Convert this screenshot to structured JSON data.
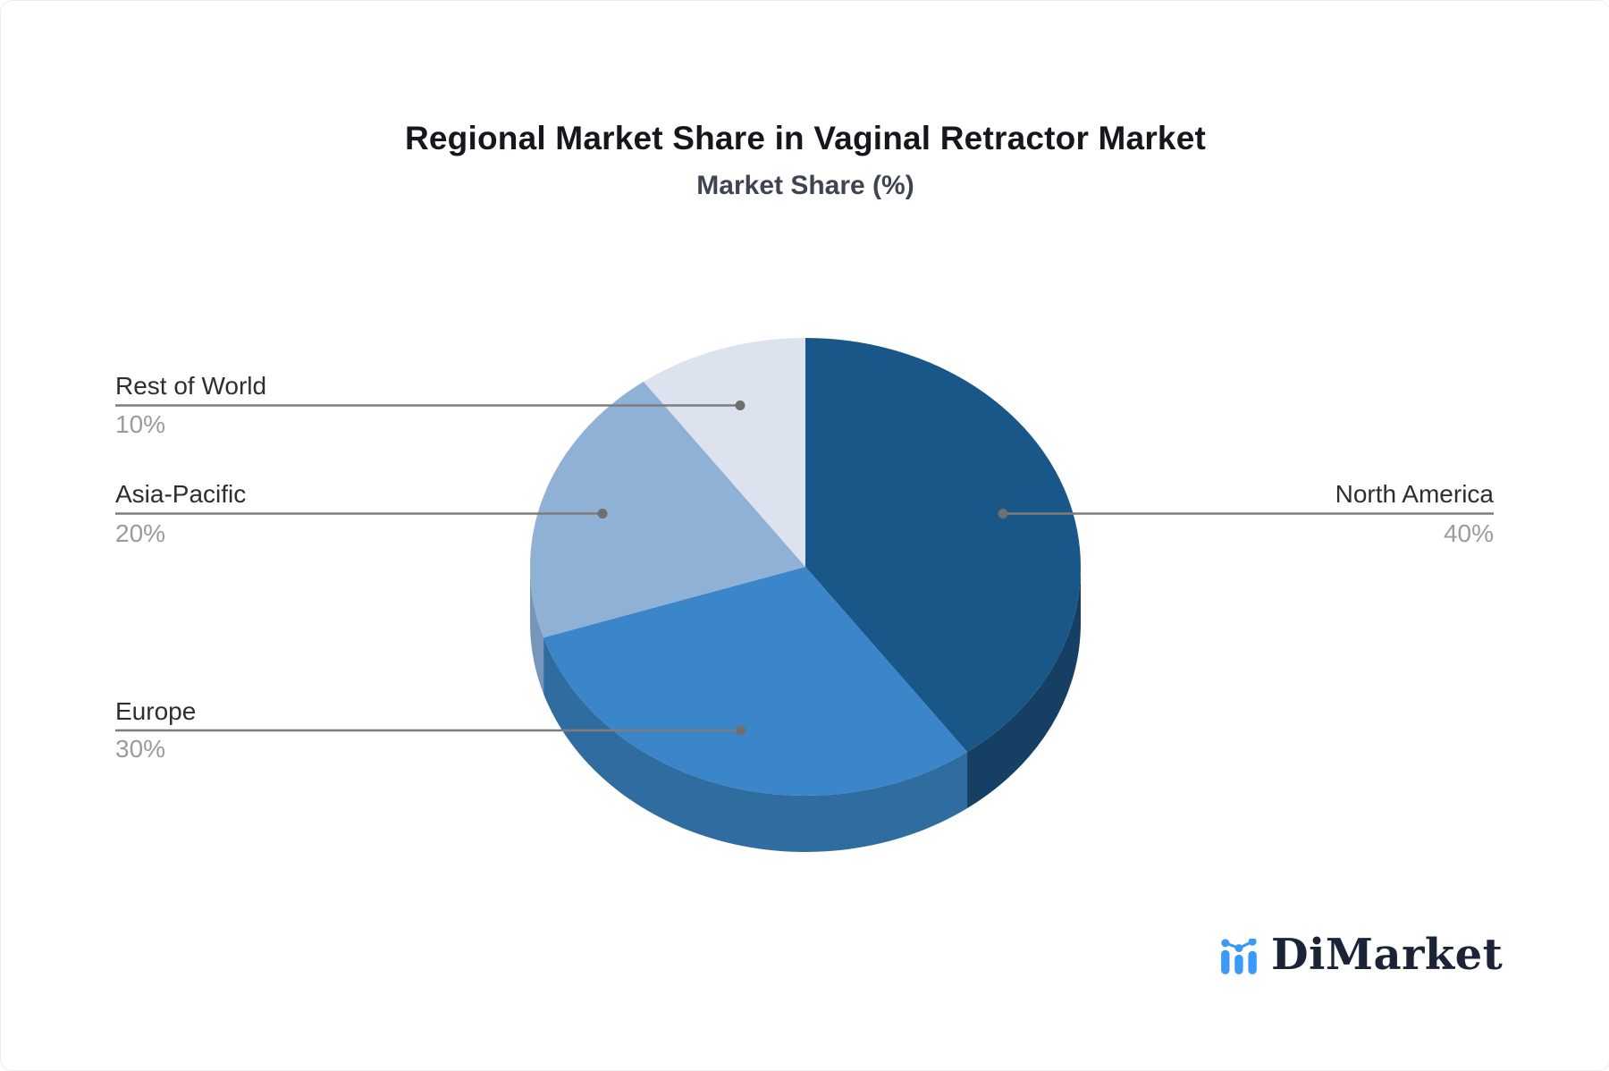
{
  "chart_data": {
    "type": "pie",
    "style": "3d",
    "title": "Regional Market Share in Vaginal Retractor Market",
    "subtitle": "Market Share (%)",
    "unit": "%",
    "categories": [
      "North America",
      "Europe",
      "Asia-Pacific",
      "Rest of World"
    ],
    "values": [
      40,
      30,
      20,
      10
    ],
    "start_angle_deg": 0,
    "direction": "clockwise",
    "legend_position": "none",
    "data_labels": "leader-line callouts with name and percent"
  },
  "slices": [
    {
      "name": "North America",
      "value_label": "40%",
      "color": "#1a5789",
      "side_color": "#153f63"
    },
    {
      "name": "Europe",
      "value_label": "30%",
      "color": "#3b86c9",
      "side_color": "#2f6ca0"
    },
    {
      "name": "Asia-Pacific",
      "value_label": "20%",
      "color": "#90b1d6",
      "side_color": "#7697bb"
    },
    {
      "name": "Rest of World",
      "value_label": "10%",
      "color": "#dce3ee",
      "side_color": "#bcc8da"
    }
  ],
  "logo": {
    "text": "DiMarket",
    "accent_color": "#3b9af8",
    "text_color": "#1b2337"
  },
  "colors": {
    "background": "#ffffff",
    "leader_line": "#7d7d7d",
    "leader_dot": "#6f6f6f",
    "label_text": "#2e2e2e",
    "pct_text": "#9b9b9b",
    "title_text": "#15171c",
    "subtitle_text": "#3e4450"
  }
}
